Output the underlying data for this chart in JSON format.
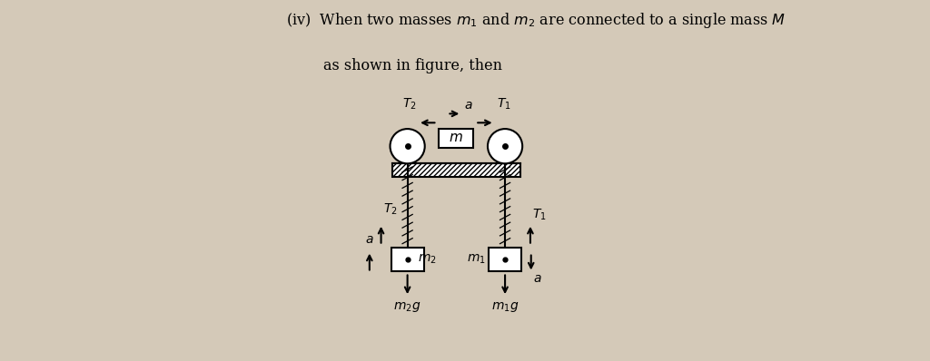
{
  "bg_color": "#d4c9b8",
  "title_line1": "(iv)  When two masses $m_1$ and $m_2$ are connected to a single mass $M$",
  "title_line2": "        as shown in figure, then",
  "mass_m_label": "$m$",
  "mass_m2_label": "$m_2$",
  "mass_m1_label": "$m_1$",
  "mass_m2g_label": "$m_2g$",
  "mass_m1g_label": "$m_1g$",
  "T1_label": "$T_1$",
  "T2_label": "$T_2$",
  "a_label": "$a$",
  "line_color": "#000000",
  "fill_color": "#ffffff"
}
